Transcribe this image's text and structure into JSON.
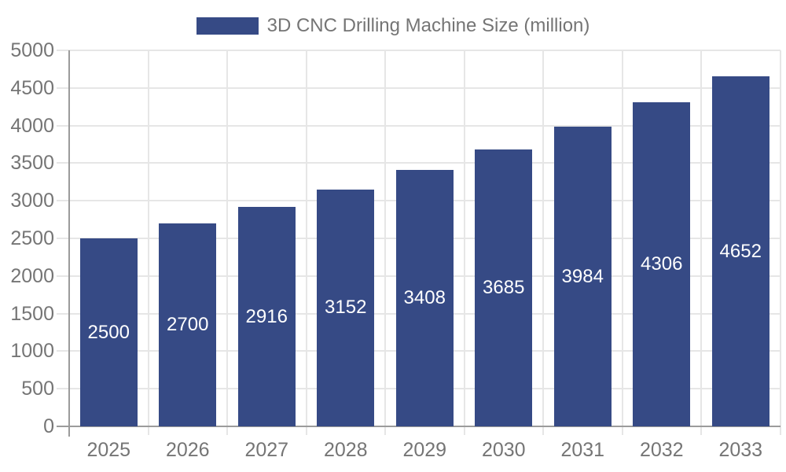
{
  "legend": {
    "label": "3D CNC Drilling Machine Size (million)"
  },
  "chart_data": {
    "type": "bar",
    "title": "3D CNC Drilling Machine Size (million)",
    "categories": [
      "2025",
      "2026",
      "2027",
      "2028",
      "2029",
      "2030",
      "2031",
      "2032",
      "2033"
    ],
    "values": [
      2500,
      2700,
      2916,
      3152,
      3408,
      3685,
      3984,
      4306,
      4652
    ],
    "xlabel": "",
    "ylabel": "",
    "ylim": [
      0,
      5000
    ],
    "yticks": [
      0,
      500,
      1000,
      1500,
      2000,
      2500,
      3000,
      3500,
      4000,
      4500,
      5000
    ],
    "grid": true,
    "legend_position": "top-center",
    "value_labels": "centered-in-bar"
  },
  "colors": {
    "bar": "#364A85",
    "axis_line": "#9b9b9b",
    "gridline": "#e6e6e6",
    "axis_text": "#757575",
    "value_label_text": "#ffffff",
    "background": "#ffffff"
  }
}
